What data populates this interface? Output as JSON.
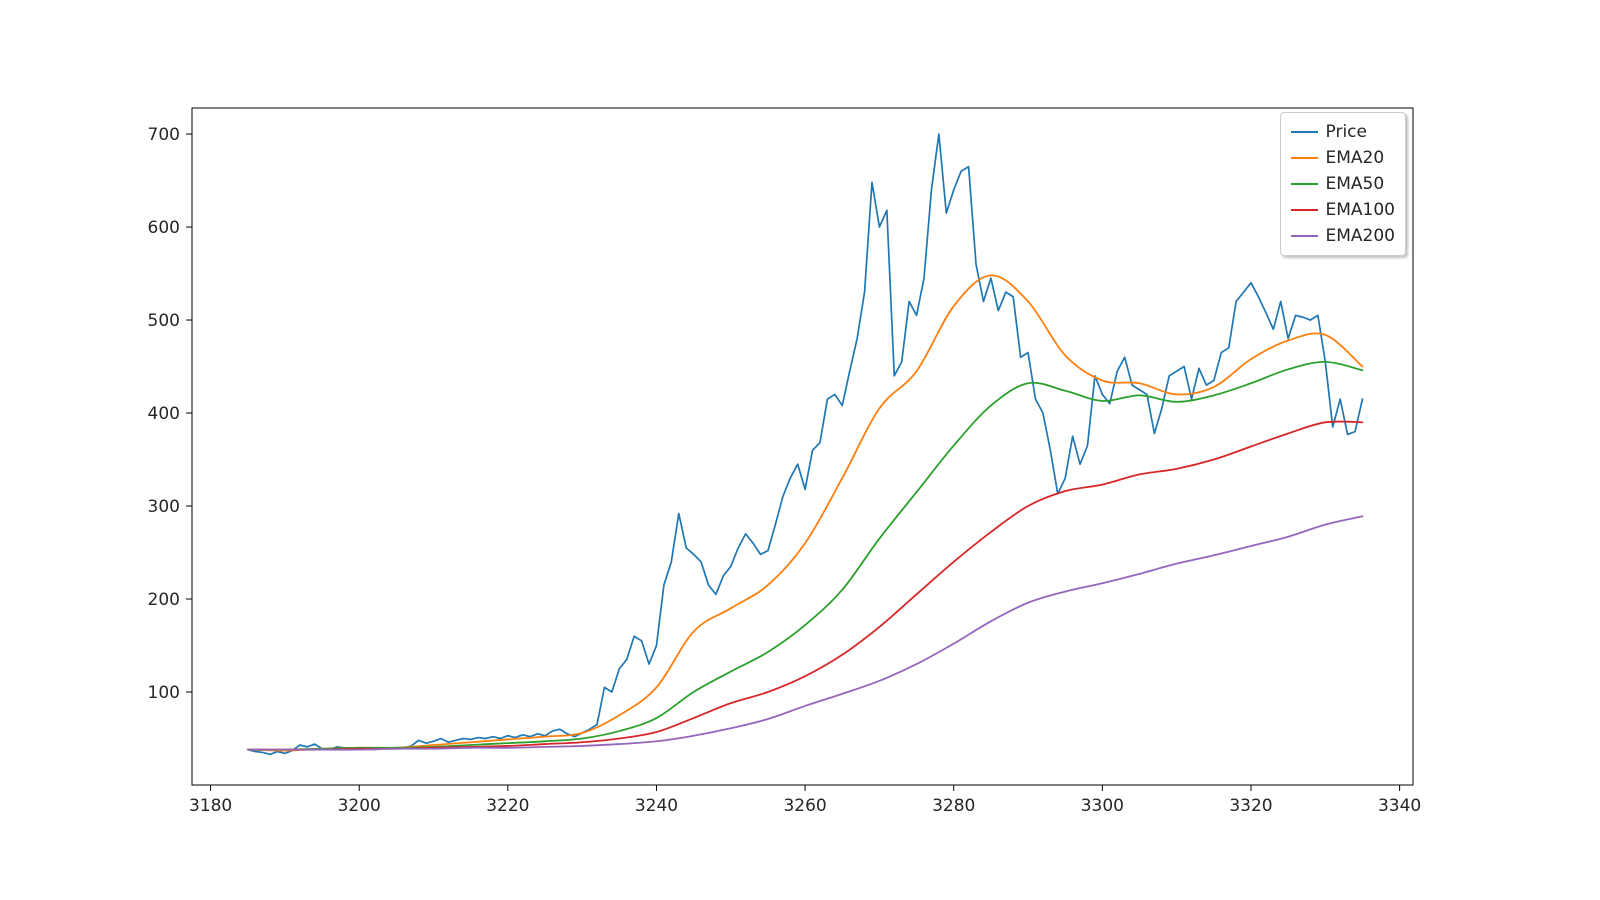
{
  "figure": {
    "background": "#ffffff"
  },
  "legend": {
    "position": "upper-right",
    "entries": [
      {
        "label": "Price",
        "color": "#1f77b4"
      },
      {
        "label": "EMA20",
        "color": "#ff7f0e"
      },
      {
        "label": "EMA50",
        "color": "#2ca02c"
      },
      {
        "label": "EMA100",
        "color": "#d62728"
      },
      {
        "label": "EMA200",
        "color": "#9467bd"
      }
    ]
  },
  "chart_data": {
    "type": "line",
    "title": "",
    "xlabel": "",
    "ylabel": "",
    "grid": false,
    "xlim": [
      3177.5,
      3341.8
    ],
    "ylim": [
      0,
      728
    ],
    "xticks": [
      3180,
      3200,
      3220,
      3240,
      3260,
      3280,
      3300,
      3320,
      3340
    ],
    "yticks": [
      100,
      200,
      300,
      400,
      500,
      600,
      700
    ],
    "legend_position": "upper-right",
    "series": [
      {
        "name": "Price",
        "color": "#1f77b4",
        "smooth": false,
        "x": [
          3185,
          3186,
          3187,
          3188,
          3189,
          3190,
          3191,
          3192,
          3193,
          3194,
          3195,
          3196,
          3197,
          3198,
          3199,
          3200,
          3201,
          3202,
          3203,
          3204,
          3205,
          3206,
          3207,
          3208,
          3209,
          3210,
          3211,
          3212,
          3213,
          3214,
          3215,
          3216,
          3217,
          3218,
          3219,
          3220,
          3221,
          3222,
          3223,
          3224,
          3225,
          3226,
          3227,
          3228,
          3229,
          3230,
          3231,
          3232,
          3233,
          3234,
          3235,
          3236,
          3237,
          3238,
          3239,
          3240,
          3241,
          3242,
          3243,
          3244,
          3245,
          3246,
          3247,
          3248,
          3249,
          3250,
          3251,
          3252,
          3253,
          3254,
          3255,
          3256,
          3257,
          3258,
          3259,
          3260,
          3261,
          3262,
          3263,
          3264,
          3265,
          3266,
          3267,
          3268,
          3269,
          3270,
          3271,
          3272,
          3273,
          3274,
          3275,
          3276,
          3277,
          3278,
          3279,
          3280,
          3281,
          3282,
          3283,
          3284,
          3285,
          3286,
          3287,
          3288,
          3289,
          3290,
          3291,
          3292,
          3293,
          3294,
          3295,
          3296,
          3297,
          3298,
          3299,
          3300,
          3301,
          3302,
          3303,
          3304,
          3305,
          3306,
          3307,
          3308,
          3309,
          3310,
          3311,
          3312,
          3313,
          3314,
          3315,
          3316,
          3317,
          3318,
          3319,
          3320,
          3321,
          3322,
          3323,
          3324,
          3325,
          3326,
          3327,
          3328,
          3329,
          3330,
          3331,
          3332,
          3333,
          3334,
          3335
        ],
        "values": [
          38,
          36,
          35,
          33,
          36,
          34,
          37,
          43,
          41,
          44,
          39,
          38,
          41,
          40,
          39,
          40,
          39,
          38,
          39,
          40,
          39,
          40,
          42,
          48,
          45,
          47,
          50,
          46,
          48,
          50,
          49,
          51,
          50,
          52,
          50,
          53,
          51,
          54,
          52,
          55,
          53,
          58,
          60,
          55,
          52,
          56,
          60,
          65,
          105,
          100,
          125,
          135,
          160,
          155,
          130,
          150,
          215,
          240,
          292,
          255,
          248,
          240,
          215,
          205,
          225,
          235,
          255,
          270,
          260,
          248,
          252,
          280,
          310,
          330,
          345,
          318,
          360,
          368,
          415,
          420,
          408,
          445,
          480,
          530,
          648,
          600,
          618,
          440,
          455,
          520,
          505,
          545,
          640,
          700,
          615,
          640,
          660,
          665,
          560,
          520,
          545,
          510,
          530,
          525,
          460,
          465,
          415,
          400,
          360,
          313,
          330,
          375,
          345,
          365,
          440,
          420,
          410,
          445,
          460,
          430,
          425,
          420,
          378,
          405,
          440,
          445,
          450,
          415,
          448,
          430,
          435,
          465,
          470,
          520,
          530,
          540,
          525,
          508,
          490,
          520,
          480,
          505,
          503,
          500,
          505,
          455,
          385,
          415,
          377,
          380,
          415
        ]
      },
      {
        "name": "EMA20",
        "color": "#ff7f0e",
        "smooth": true,
        "x": [
          3185,
          3190,
          3195,
          3200,
          3205,
          3210,
          3215,
          3220,
          3225,
          3230,
          3235,
          3240,
          3245,
          3250,
          3255,
          3260,
          3265,
          3270,
          3275,
          3280,
          3285,
          3290,
          3295,
          3300,
          3305,
          3310,
          3315,
          3320,
          3325,
          3330,
          3335
        ],
        "values": [
          38,
          37,
          39,
          40,
          40,
          43,
          46,
          49,
          52,
          56,
          75,
          105,
          165,
          190,
          215,
          260,
          330,
          405,
          445,
          515,
          548,
          520,
          462,
          435,
          432,
          420,
          428,
          458,
          478,
          484,
          450
        ]
      },
      {
        "name": "EMA50",
        "color": "#2ca02c",
        "smooth": true,
        "x": [
          3185,
          3190,
          3195,
          3200,
          3205,
          3210,
          3215,
          3220,
          3225,
          3230,
          3235,
          3240,
          3245,
          3250,
          3255,
          3260,
          3265,
          3270,
          3275,
          3280,
          3285,
          3290,
          3295,
          3300,
          3305,
          3310,
          3315,
          3320,
          3325,
          3330,
          3335
        ],
        "values": [
          38,
          38,
          39,
          40,
          40,
          41,
          43,
          45,
          47,
          50,
          58,
          72,
          100,
          122,
          143,
          172,
          210,
          265,
          315,
          365,
          408,
          432,
          424,
          413,
          419,
          412,
          419,
          432,
          447,
          455,
          446
        ]
      },
      {
        "name": "EMA100",
        "color": "#d62728",
        "smooth": true,
        "x": [
          3185,
          3190,
          3195,
          3200,
          3205,
          3210,
          3215,
          3220,
          3225,
          3230,
          3235,
          3240,
          3245,
          3250,
          3255,
          3260,
          3265,
          3270,
          3275,
          3280,
          3285,
          3290,
          3295,
          3300,
          3305,
          3310,
          3315,
          3320,
          3325,
          3330,
          3335
        ],
        "values": [
          38,
          38,
          38,
          39,
          39,
          40,
          41,
          42,
          44,
          46,
          50,
          57,
          72,
          88,
          100,
          117,
          140,
          170,
          205,
          240,
          272,
          300,
          316,
          323,
          334,
          340,
          350,
          364,
          378,
          390,
          390
        ]
      },
      {
        "name": "EMA200",
        "color": "#9467bd",
        "smooth": true,
        "x": [
          3185,
          3190,
          3195,
          3200,
          3205,
          3210,
          3215,
          3220,
          3225,
          3230,
          3235,
          3240,
          3245,
          3250,
          3255,
          3260,
          3265,
          3270,
          3275,
          3280,
          3285,
          3290,
          3295,
          3300,
          3305,
          3310,
          3315,
          3320,
          3325,
          3330,
          3335
        ],
        "values": [
          38,
          38,
          38,
          38,
          39,
          39,
          40,
          40,
          41,
          42,
          44,
          47,
          53,
          61,
          71,
          85,
          98,
          112,
          130,
          152,
          176,
          196,
          208,
          217,
          227,
          238,
          247,
          257,
          267,
          280,
          289
        ]
      }
    ]
  }
}
